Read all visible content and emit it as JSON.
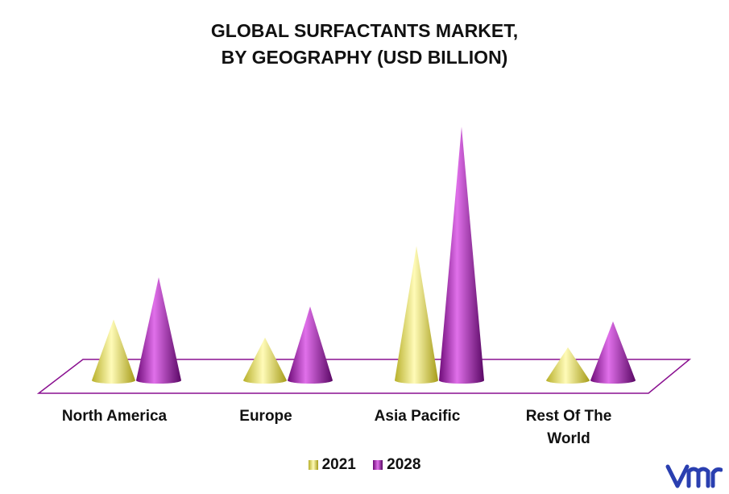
{
  "chart_data": {
    "type": "bar",
    "shape": "cone",
    "title": [
      "GLOBAL SURFACTANTS MARKET,",
      "BY GEOGRAPHY (USD BILLION)"
    ],
    "categories": [
      "North America",
      "Europe",
      "Asia Pacific",
      "Rest Of The World"
    ],
    "series": [
      {
        "name": "2021",
        "values": [
          9.4,
          6.6,
          20.7,
          5.1
        ],
        "color": "#e6e05a"
      },
      {
        "name": "2028",
        "values": [
          15.9,
          11.4,
          39.1,
          9.1
        ],
        "color": "#a018a8"
      }
    ],
    "ylim": [
      0,
      40
    ],
    "grid": false,
    "legend": "bottom",
    "floor_color": "#8a1090"
  },
  "labels": {
    "north_america": "North America",
    "europe": "Europe",
    "asia_pacific": "Asia Pacific",
    "rest_line1": "Rest Of The",
    "rest_line2": "World"
  },
  "legend": {
    "item1": "2021",
    "item2": "2028"
  },
  "logo": {
    "icon": "vmr-logo-icon",
    "color": "#2a3fb0"
  }
}
